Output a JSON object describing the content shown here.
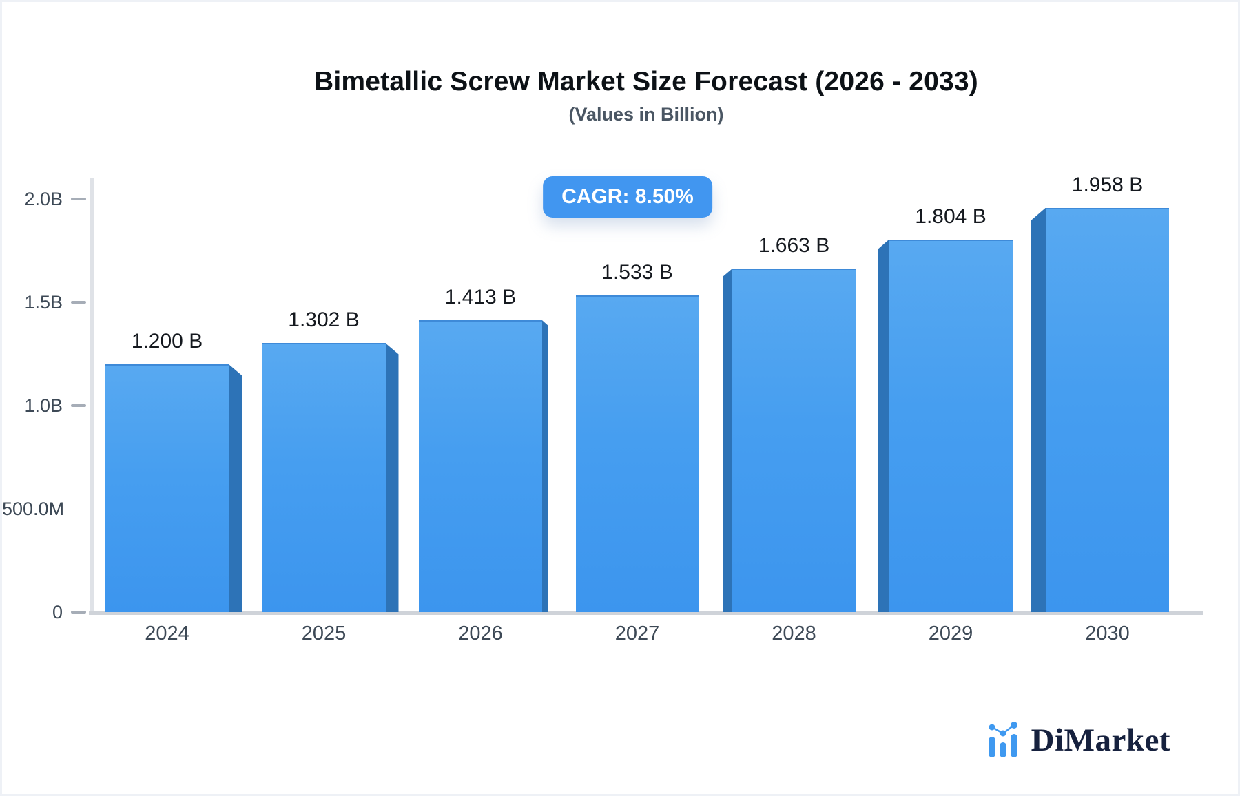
{
  "chart_data": {
    "type": "bar",
    "title": "Bimetallic Screw Market Size Forecast (2026 - 2033)",
    "subtitle": "(Values in Billion)",
    "badge_label": "CAGR: 8.50%",
    "categories": [
      "2024",
      "2025",
      "2026",
      "2027",
      "2028",
      "2029",
      "2030"
    ],
    "values": [
      1.2,
      1.302,
      1.413,
      1.533,
      1.663,
      1.804,
      1.958
    ],
    "value_labels": [
      "1.200 B",
      "1.302 B",
      "1.413 B",
      "1.533 B",
      "1.663 B",
      "1.804 B",
      "1.958 B"
    ],
    "xlabel": "",
    "ylabel": "",
    "y_axis": {
      "min": 0,
      "max": 2.0,
      "tick_values": [
        2.0,
        1.5,
        1.0,
        0.5,
        0
      ],
      "tick_labels": [
        "2.0B",
        "1.5B",
        "1.0B",
        "500.0M",
        "0"
      ]
    },
    "grid": false,
    "legend": false
  },
  "colors": {
    "bar_fill_top": "#58a9f1",
    "bar_fill_bottom": "#3c95ee",
    "bar_side": "#2d73b7",
    "badge_bg": "#4196f0",
    "badge_text": "#ffffff",
    "axis_text": "#3d4956",
    "value_text": "#15191f",
    "logo_blue": "#3f99f0",
    "logo_navy": "#16213e"
  },
  "branding": {
    "logo_text": "DiMarket"
  }
}
